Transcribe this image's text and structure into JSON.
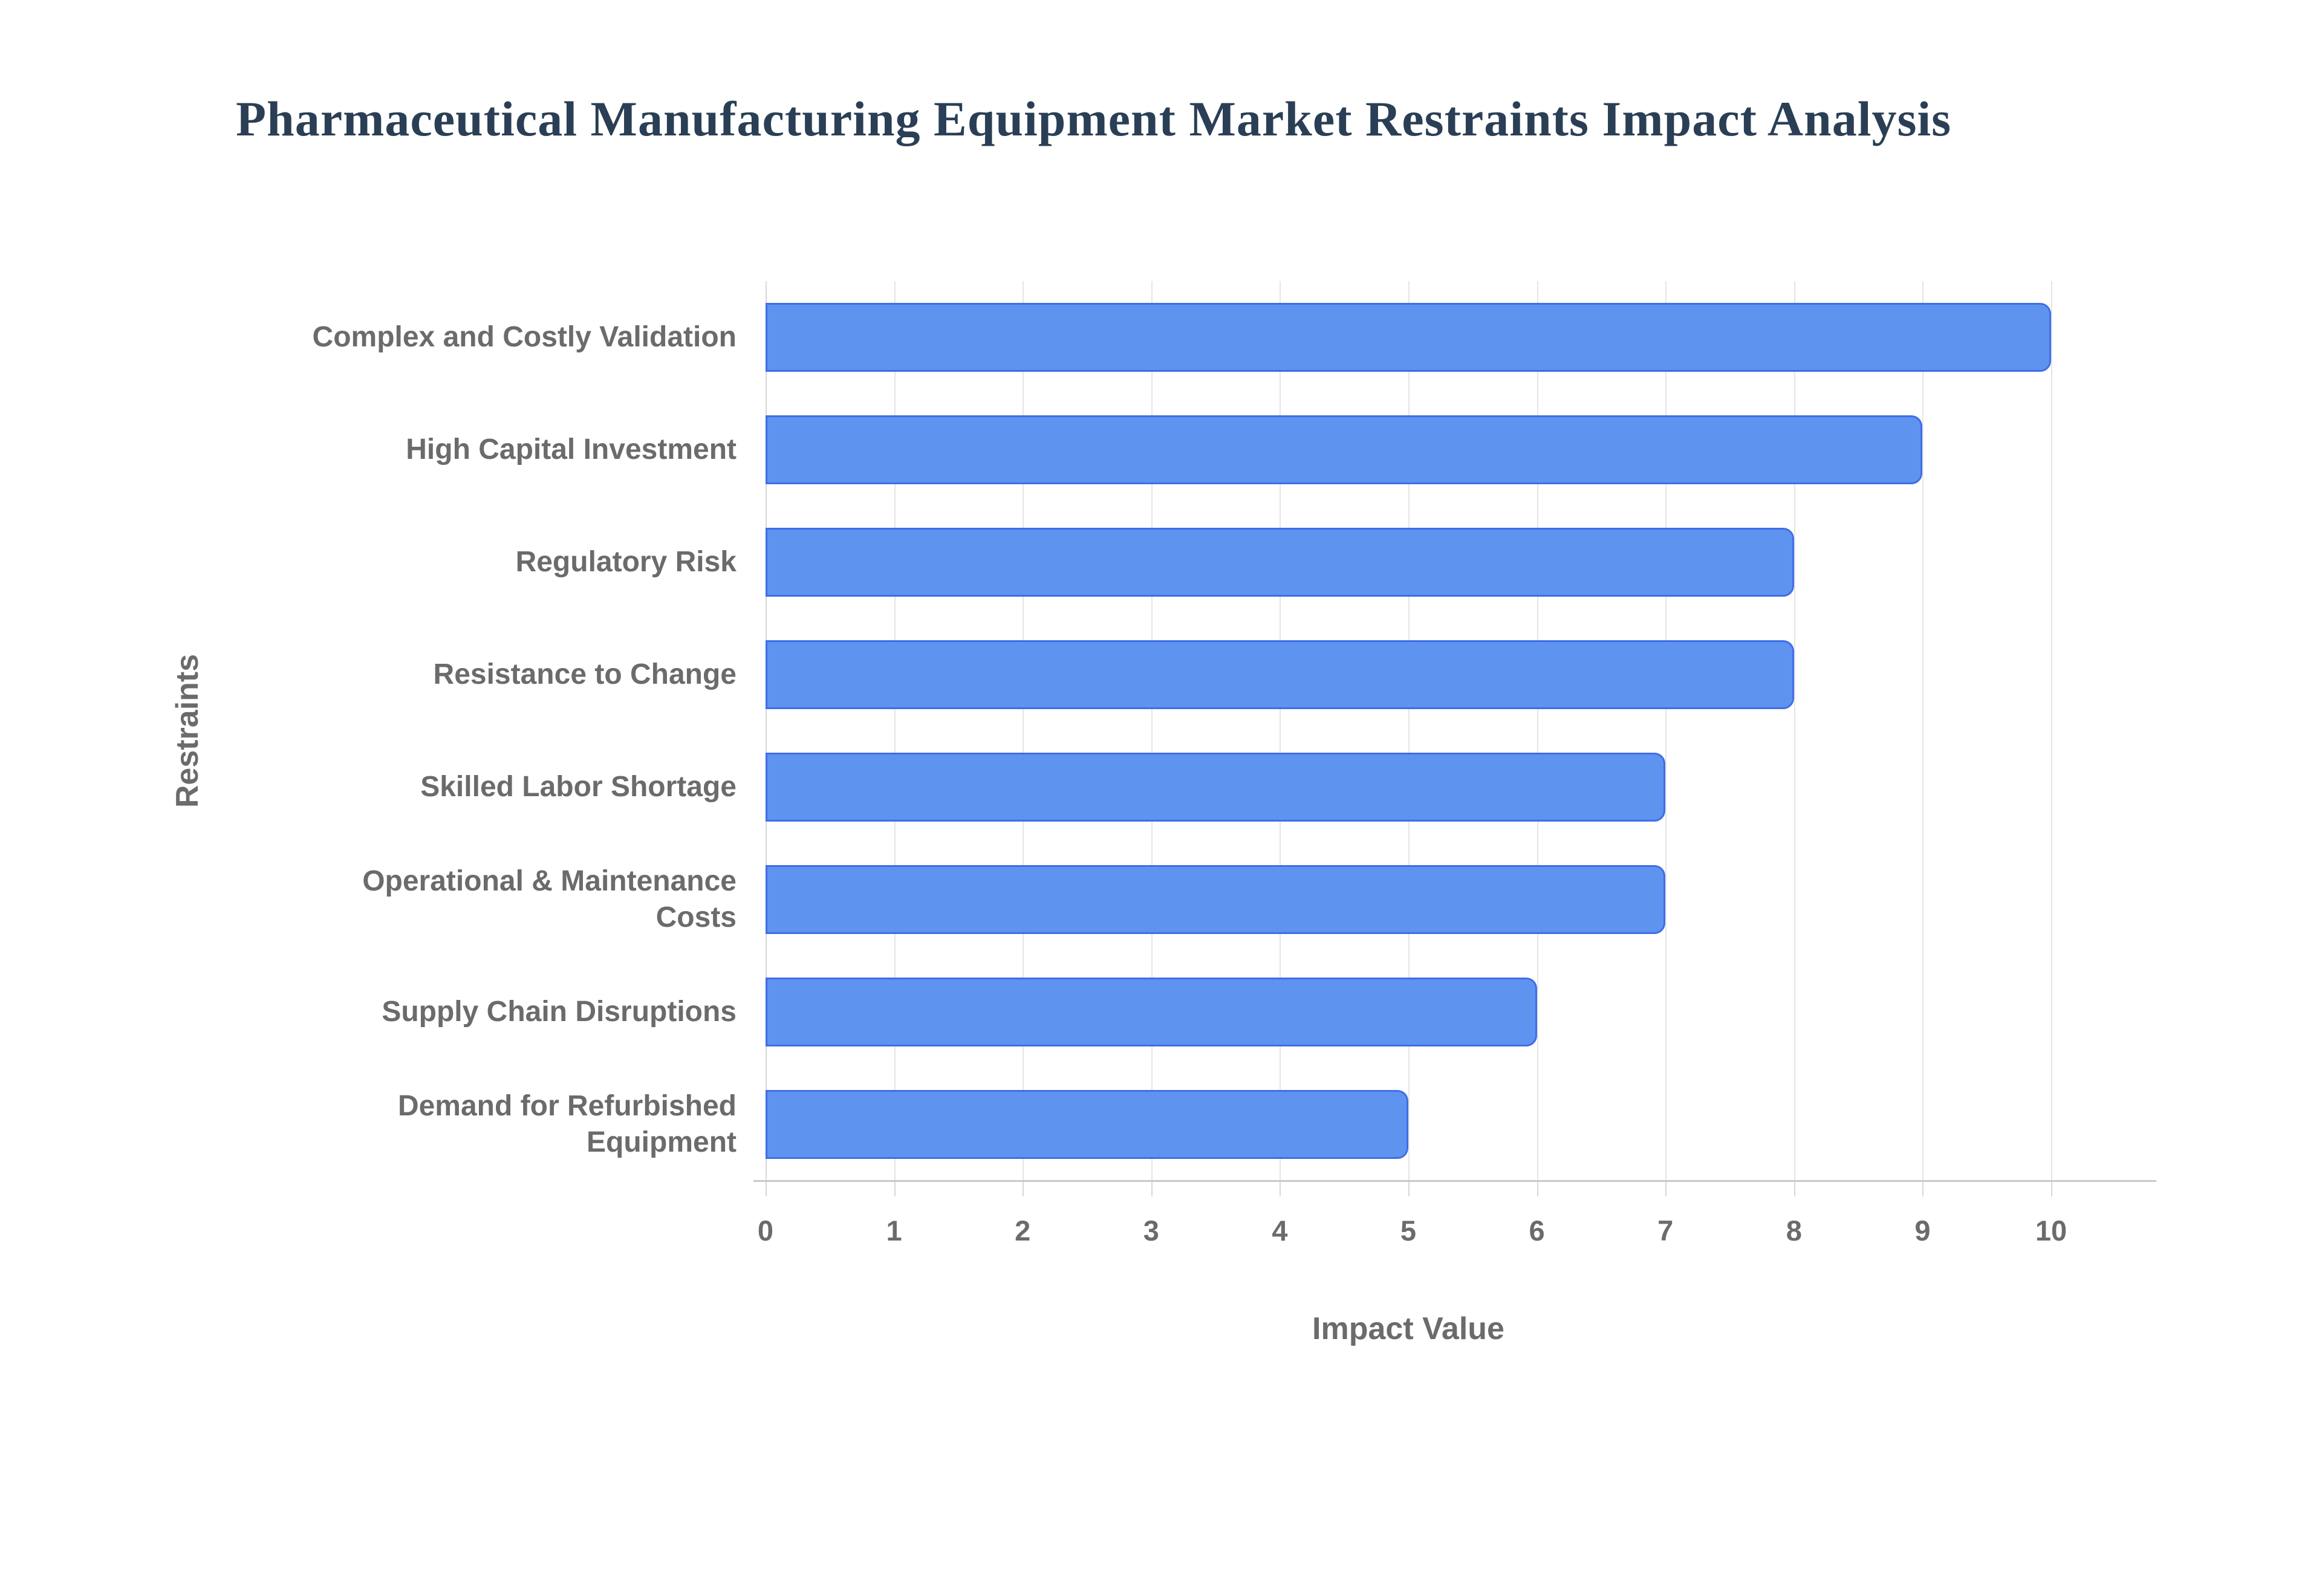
{
  "title": "Pharmaceutical Manufacturing Equipment Market Restraints Impact Analysis",
  "chart_data": {
    "type": "bar",
    "orientation": "horizontal",
    "title": "Pharmaceutical Manufacturing Equipment Market Restraints Impact Analysis",
    "categories": [
      "Complex and Costly Validation",
      "High Capital Investment",
      "Regulatory Risk",
      "Resistance to Change",
      "Skilled Labor Shortage",
      "Operational & Maintenance\nCosts",
      "Supply Chain Disruptions",
      "Demand for Refurbished\nEquipment"
    ],
    "values": [
      10,
      9,
      8,
      8,
      7,
      7,
      6,
      5
    ],
    "xlabel": "Impact Value",
    "ylabel": "Restraints",
    "xlim": [
      0,
      10
    ],
    "xticks": [
      0,
      1,
      2,
      3,
      4,
      5,
      6,
      7,
      8,
      9,
      10
    ],
    "grid": true,
    "legend": "none",
    "colors": {
      "bar_fill": "#5e93f0",
      "bar_border": "#3f6ee6",
      "gridline": "#e5e5e5",
      "axis_line": "#c8c8c8",
      "label_text": "#6b6b6b",
      "title_text": "#2a3f55",
      "background": "#ffffff"
    }
  }
}
